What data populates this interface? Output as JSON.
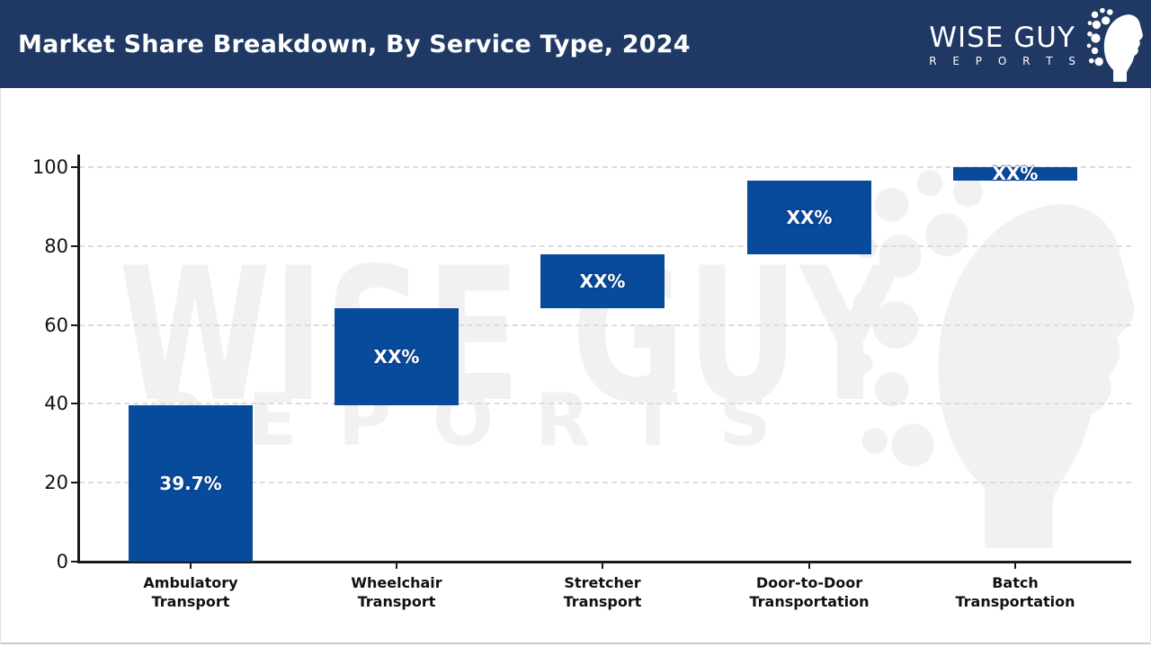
{
  "header": {
    "title": "Market Share Breakdown, By Service Type, 2024",
    "logo": {
      "line1": "WISE GUY",
      "line2": "R E P O R T S"
    }
  },
  "watermark": {
    "line1": "WISE GUY",
    "line2": "REPORTS"
  },
  "chart_data": {
    "type": "bar",
    "subtype": "waterfall",
    "title": "Market Share Breakdown, By Service Type, 2024",
    "categories": [
      "Ambulatory\nTransport",
      "Wheelchair\nTransport",
      "Stretcher\nTransport",
      "Door-to-Door\nTransportation",
      "Batch\nTransportation"
    ],
    "segments": [
      {
        "category": "Ambulatory Transport",
        "start": 0,
        "end": 39.7,
        "label": "39.7%"
      },
      {
        "category": "Wheelchair Transport",
        "start": 39.7,
        "end": 64.3,
        "label": "XX%"
      },
      {
        "category": "Stretcher Transport",
        "start": 64.3,
        "end": 78.0,
        "label": "XX%"
      },
      {
        "category": "Door-to-Door Transportation",
        "start": 78.0,
        "end": 96.6,
        "label": "XX%"
      },
      {
        "category": "Batch Transportation",
        "start": 96.6,
        "end": 100,
        "label": "XX%"
      }
    ],
    "ylim": [
      0,
      100
    ],
    "yticks": [
      0,
      20,
      40,
      60,
      80,
      100
    ],
    "grid": "dashed-horizontal",
    "legend": "none",
    "bar_color": "#084a9c",
    "label_color": "#ffffff"
  },
  "colors": {
    "header_bg": "#203864",
    "bar": "#084a9c",
    "grid": "#dcdcdc",
    "axis": "#1a1a1a",
    "watermark": "#f1f1f1"
  }
}
